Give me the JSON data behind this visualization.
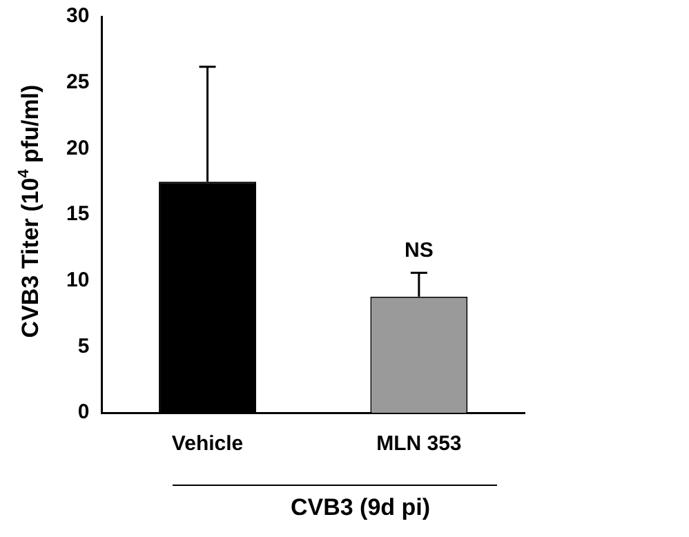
{
  "chart_data": {
    "type": "bar",
    "xlabel": "CVB3 (9d pi)",
    "ylabel": "CVB3 Titer (10$^{4}$ pfu/ml)",
    "categories": [
      "Vehicle",
      "MLN 353"
    ],
    "values": [
      17.5,
      8.8
    ],
    "colors": [
      "#000000",
      "#9a9a9a"
    ],
    "errors": [
      [
        17.5,
        26.2
      ],
      [
        8.8,
        10.6
      ]
    ],
    "ylim": [
      0,
      30
    ],
    "yticks": [
      0,
      5,
      10,
      15,
      20,
      25,
      30
    ],
    "grid": false,
    "legend": false,
    "annotations": [
      "NS"
    ]
  }
}
